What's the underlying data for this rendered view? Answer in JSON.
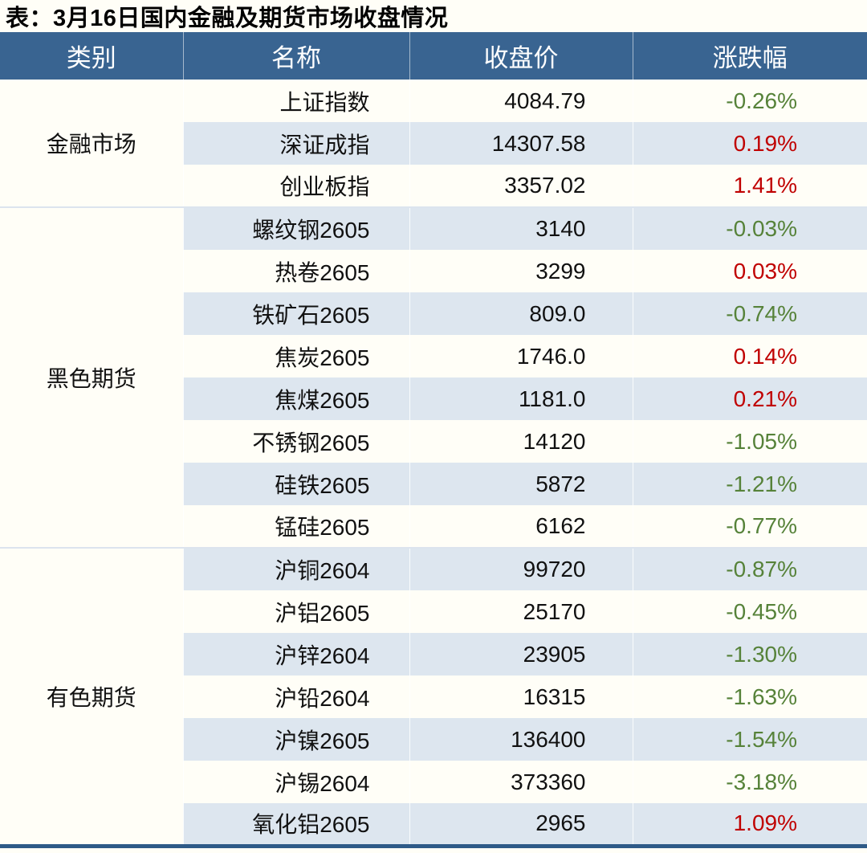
{
  "page": {
    "title": "表：3月16日国内金融及期货市场收盘情况"
  },
  "table": {
    "columns": [
      "类别",
      "名称",
      "收盘价",
      "涨跌幅"
    ],
    "groups": [
      {
        "category": "金融市场",
        "rows": [
          {
            "name": "上证指数",
            "close": "4084.79",
            "change": "-0.26%"
          },
          {
            "name": "深证成指",
            "close": "14307.58",
            "change": "0.19%"
          },
          {
            "name": "创业板指",
            "close": "3357.02",
            "change": "1.41%"
          }
        ]
      },
      {
        "category": "黑色期货",
        "rows": [
          {
            "name": "螺纹钢2605",
            "close": "3140",
            "change": "-0.03%"
          },
          {
            "name": "热卷2605",
            "close": "3299",
            "change": "0.03%"
          },
          {
            "name": "铁矿石2605",
            "close": "809.0",
            "change": "-0.74%"
          },
          {
            "name": "焦炭2605",
            "close": "1746.0",
            "change": "0.14%"
          },
          {
            "name": "焦煤2605",
            "close": "1181.0",
            "change": "0.21%"
          },
          {
            "name": "不锈钢2605",
            "close": "14120",
            "change": "-1.05%"
          },
          {
            "name": "硅铁2605",
            "close": "5872",
            "change": "-1.21%"
          },
          {
            "name": "锰硅2605",
            "close": "6162",
            "change": "-0.77%"
          }
        ]
      },
      {
        "category": "有色期货",
        "rows": [
          {
            "name": "沪铜2604",
            "close": "99720",
            "change": "-0.87%"
          },
          {
            "name": "沪铝2605",
            "close": "25170",
            "change": "-0.45%"
          },
          {
            "name": "沪锌2604",
            "close": "23905",
            "change": "-1.30%"
          },
          {
            "name": "沪铅2604",
            "close": "16315",
            "change": "-1.63%"
          },
          {
            "name": "沪镍2605",
            "close": "136400",
            "change": "-1.54%"
          },
          {
            "name": "沪锡2604",
            "close": "373360",
            "change": "-3.18%"
          },
          {
            "name": "氧化铝2605",
            "close": "2965",
            "change": "1.09%"
          }
        ]
      }
    ]
  },
  "colors": {
    "header_bg": "#396491",
    "stripe_bg": "#dde6ef",
    "page_bg": "#fffef7",
    "up_red": "#c00000",
    "down_green": "#568239",
    "bottom_border": "#2e5a88",
    "group_line": "#dce4ee"
  },
  "chart_data": {
    "type": "table",
    "title": "表：3月16日国内金融及期货市场收盘情况",
    "columns": [
      "类别",
      "名称",
      "收盘价",
      "涨跌幅"
    ],
    "rows": [
      [
        "金融市场",
        "上证指数",
        4084.79,
        "-0.26%"
      ],
      [
        "金融市场",
        "深证成指",
        14307.58,
        "0.19%"
      ],
      [
        "金融市场",
        "创业板指",
        3357.02,
        "1.41%"
      ],
      [
        "黑色期货",
        "螺纹钢2605",
        3140,
        "-0.03%"
      ],
      [
        "黑色期货",
        "热卷2605",
        3299,
        "0.03%"
      ],
      [
        "黑色期货",
        "铁矿石2605",
        809.0,
        "-0.74%"
      ],
      [
        "黑色期货",
        "焦炭2605",
        1746.0,
        "0.14%"
      ],
      [
        "黑色期货",
        "焦煤2605",
        1181.0,
        "0.21%"
      ],
      [
        "黑色期货",
        "不锈钢2605",
        14120,
        "-1.05%"
      ],
      [
        "黑色期货",
        "硅铁2605",
        5872,
        "-1.21%"
      ],
      [
        "黑色期货",
        "锰硅2605",
        6162,
        "-0.77%"
      ],
      [
        "有色期货",
        "沪铜2604",
        99720,
        "-0.87%"
      ],
      [
        "有色期货",
        "沪铝2605",
        25170,
        "-0.45%"
      ],
      [
        "有色期货",
        "沪锌2604",
        23905,
        "-1.30%"
      ],
      [
        "有色期货",
        "沪铅2604",
        16315,
        "-1.63%"
      ],
      [
        "有色期货",
        "沪镍2605",
        136400,
        "-1.54%"
      ],
      [
        "有色期货",
        "沪锡2604",
        373360,
        "-3.18%"
      ],
      [
        "有色期货",
        "氧化铝2605",
        2965,
        "1.09%"
      ]
    ],
    "legend": {
      "positive_change_color": "#c00000",
      "negative_change_color": "#568239"
    }
  }
}
